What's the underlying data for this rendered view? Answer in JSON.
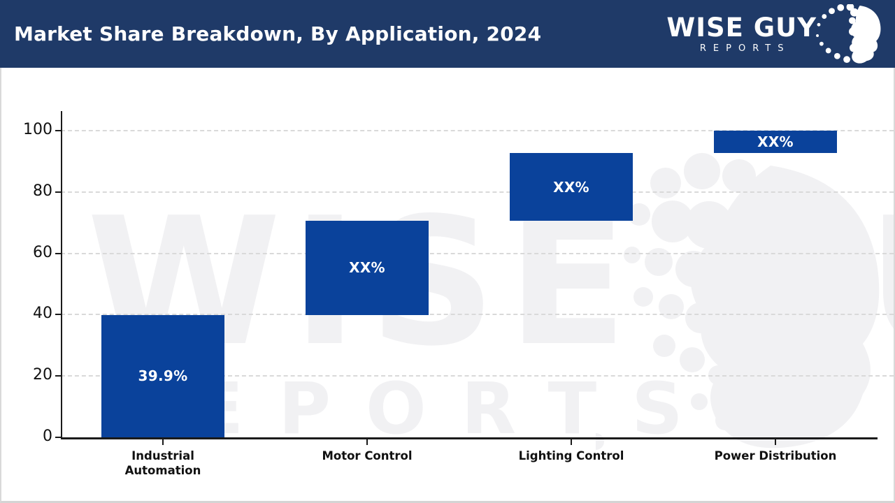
{
  "header": {
    "title": "Market Share Breakdown, By Application, 2024",
    "logo": {
      "line1": "WISE GUY",
      "line2": "REPORTS"
    }
  },
  "watermark": {
    "line1": "WISE GUY",
    "line2": "REPORTS"
  },
  "chart_data": {
    "type": "bar",
    "subtype": "floating_waterfall_segments",
    "title": "Market Share Breakdown, By Application, 2024",
    "categories": [
      "Industrial\nAutomation",
      "Motor Control",
      "Lighting Control",
      "Power Distribution"
    ],
    "bars": [
      {
        "category": "Industrial Automation",
        "start": 0,
        "end": 39.9,
        "label": "39.9%"
      },
      {
        "category": "Motor Control",
        "start": 39.9,
        "end": 70.6,
        "label": "XX%"
      },
      {
        "category": "Lighting Control",
        "start": 70.6,
        "end": 92.7,
        "label": "XX%"
      },
      {
        "category": "Power Distribution",
        "start": 92.7,
        "end": 100,
        "label": "XX%"
      }
    ],
    "xlabel": "",
    "ylabel": "",
    "ylim": [
      0,
      106
    ],
    "yticks": [
      0,
      20,
      40,
      60,
      80,
      100
    ],
    "grid": {
      "axis": "y",
      "style": "dashed",
      "color": "#d9d9d9"
    },
    "legend": null,
    "colors": {
      "bar": "#0a429b",
      "bar_label": "#ffffff",
      "header_bg": "#1f3a68",
      "axis": "#1a1a1a",
      "watermark": "#f1f1f3"
    }
  }
}
